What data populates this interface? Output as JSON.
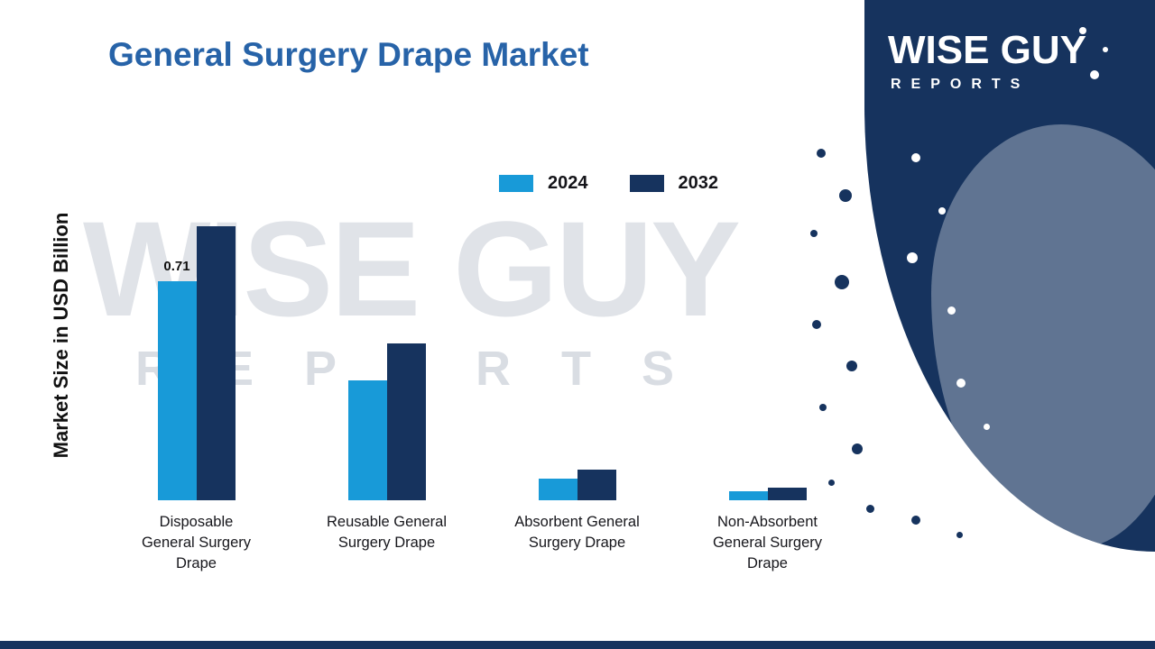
{
  "header": {
    "title": "General Surgery Drape Market"
  },
  "brand": {
    "name": "WISE GUY",
    "subtitle": "REPORTS"
  },
  "watermark": {
    "line1": "WISE GUY",
    "line2": "REPORTS"
  },
  "chart_data": {
    "type": "bar",
    "title": "General Surgery Drape Market",
    "xlabel": "",
    "ylabel": "Market Size in USD Billion",
    "ylim": [
      0,
      1.0
    ],
    "grid": false,
    "legend_position": "top",
    "categories": [
      "Disposable General Surgery Drape",
      "Reusable General Surgery Drape",
      "Absorbent General Surgery Drape",
      "Non-Absorbent General Surgery Drape"
    ],
    "series": [
      {
        "name": "2024",
        "color": "#189ad8",
        "values": [
          0.71,
          0.39,
          0.07,
          0.03
        ]
      },
      {
        "name": "2032",
        "color": "#16335e",
        "values": [
          0.89,
          0.51,
          0.1,
          0.04
        ]
      }
    ],
    "annotations": [
      {
        "series_index": 0,
        "category_index": 0,
        "text": "0.71"
      }
    ]
  },
  "colors": {
    "accent_blue": "#189ad8",
    "navy": "#16335e",
    "title_blue": "#2763a8",
    "watermark_gray": "#dfe2e7"
  }
}
